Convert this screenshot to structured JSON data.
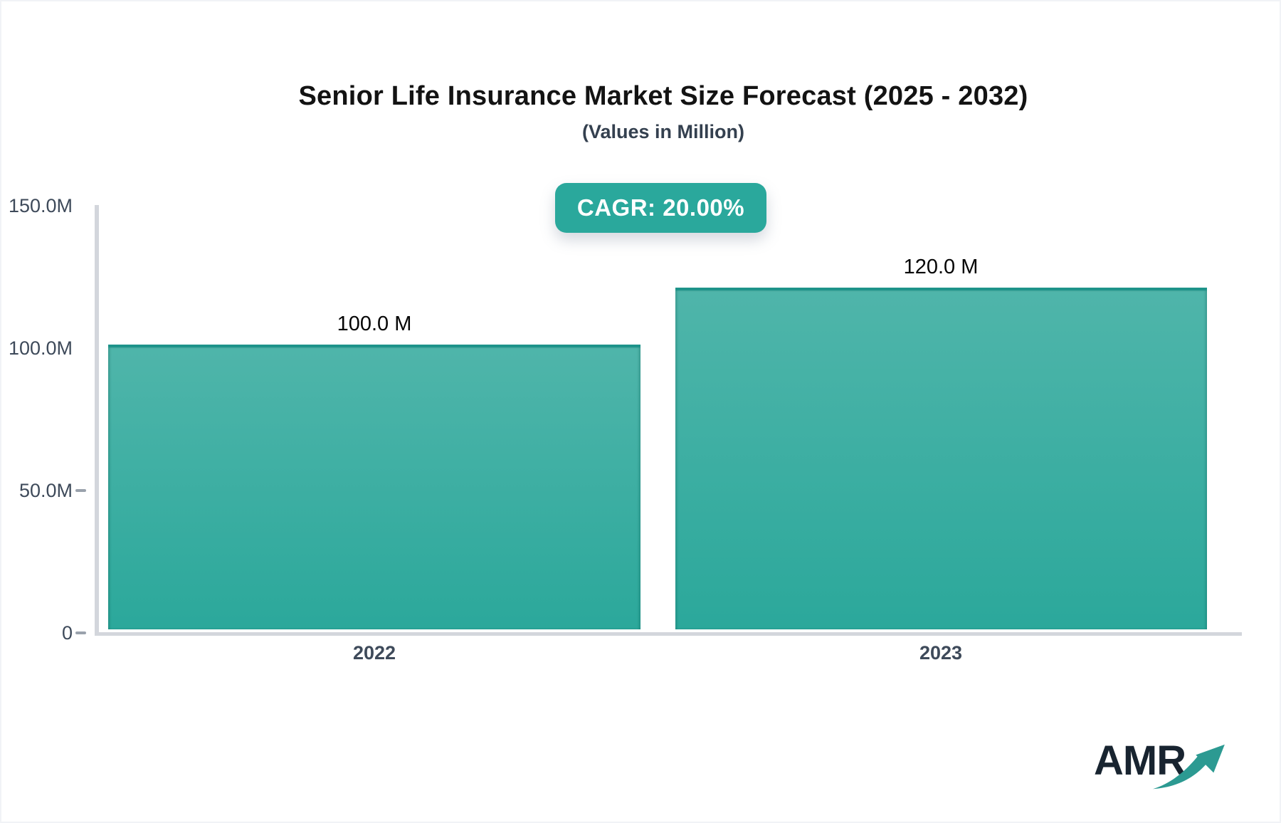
{
  "chart": {
    "title": "Senior Life Insurance Market Size Forecast (2025 - 2032)",
    "subtitle": "(Values in Million)",
    "cagr_badge": "CAGR: 20.00%"
  },
  "chart_data": {
    "type": "bar",
    "title": "Senior Life Insurance Market Size Forecast (2025 - 2032)",
    "subtitle": "(Values in Million)",
    "cagr": "20.00%",
    "unit": "Million",
    "categories": [
      "2022",
      "2023"
    ],
    "values": [
      100,
      120
    ],
    "value_labels": [
      "100.0 M",
      "120.0 M"
    ],
    "xlabel": "",
    "ylabel": "",
    "ylim": [
      0,
      150
    ],
    "ytick_labels": [
      "150.0M",
      "100.0M",
      "50.0M",
      "0"
    ],
    "grid": false,
    "legend": false
  },
  "branding": {
    "logo_text": "AMR"
  },
  "colors": {
    "accent_teal": "#2AA89C",
    "bar_gradient_top": "#4FB5AA",
    "bar_gradient_bottom": "#2BA89B",
    "bar_top_border": "#1E938A",
    "axis_line": "#D3D6DC",
    "tick_dash": "#9AA2AC",
    "tick_label": "#3E4A5A",
    "title_text": "#131313",
    "subtitle_text": "#34404F",
    "badge_text": "#FFFFFF",
    "logo_text": "#182430",
    "logo_arrow": "#2C9A92"
  }
}
